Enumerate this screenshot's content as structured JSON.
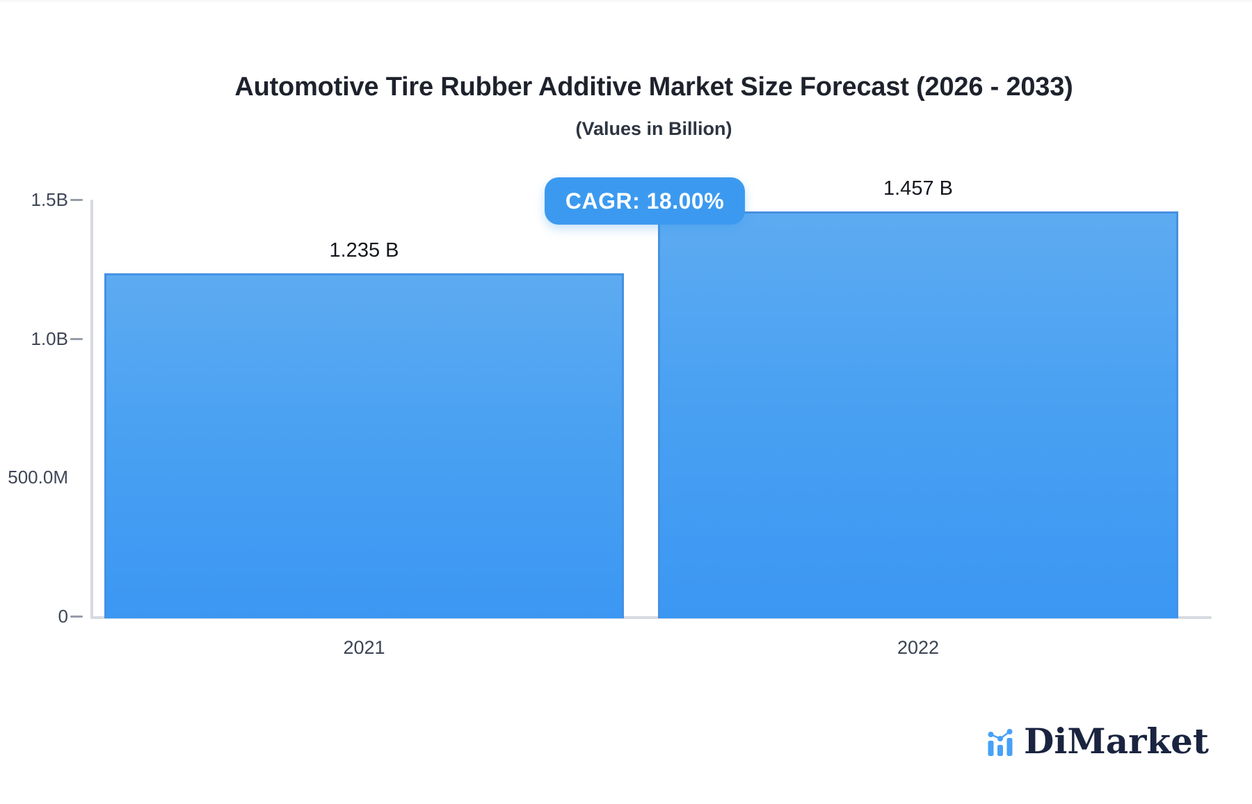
{
  "header": {
    "title": "Automotive Tire Rubber Additive Market Size Forecast (2026 - 2033)",
    "subtitle": "(Values in Billion)"
  },
  "badge": {
    "label": "CAGR: 18.00%"
  },
  "chart_data": {
    "type": "bar",
    "title": "Automotive Tire Rubber Additive Market Size Forecast (2026 - 2033)",
    "subtitle": "(Values in Billion)",
    "categories": [
      "2021",
      "2022"
    ],
    "values": [
      1.235,
      1.457
    ],
    "value_labels": [
      "1.235 B",
      "1.457 B"
    ],
    "unit": "Billion",
    "xlabel": "",
    "ylabel": "",
    "ylim": [
      0,
      1.5
    ],
    "yticks": [
      {
        "label": "1.5B",
        "value": 1.5,
        "dash": true
      },
      {
        "label": "1.0B",
        "value": 1.0,
        "dash": true
      },
      {
        "label": "500.0M",
        "value": 0.5,
        "dash": false
      },
      {
        "label": "0",
        "value": 0,
        "dash": true
      }
    ],
    "grid": false,
    "legend_position": "none",
    "annotations": [
      {
        "type": "badge",
        "text": "CAGR: 18.00%"
      }
    ]
  },
  "logo": {
    "text": "DiMarket",
    "icon": "bar-chart-logo-icon"
  },
  "colors": {
    "bar_fill_top": "#5dabf1",
    "bar_fill_bottom": "#3b97f3",
    "bar_border": "#4690e2",
    "badge_background": "#3b9af0",
    "badge_text": "#ffffff",
    "axis_line": "#d6d9e0",
    "tick_mark": "#959ca9",
    "axis_label_text": "#3f4655",
    "title_text": "#1e222c",
    "logo_blue": "#47a1f6",
    "logo_navy": "#1a2440"
  }
}
